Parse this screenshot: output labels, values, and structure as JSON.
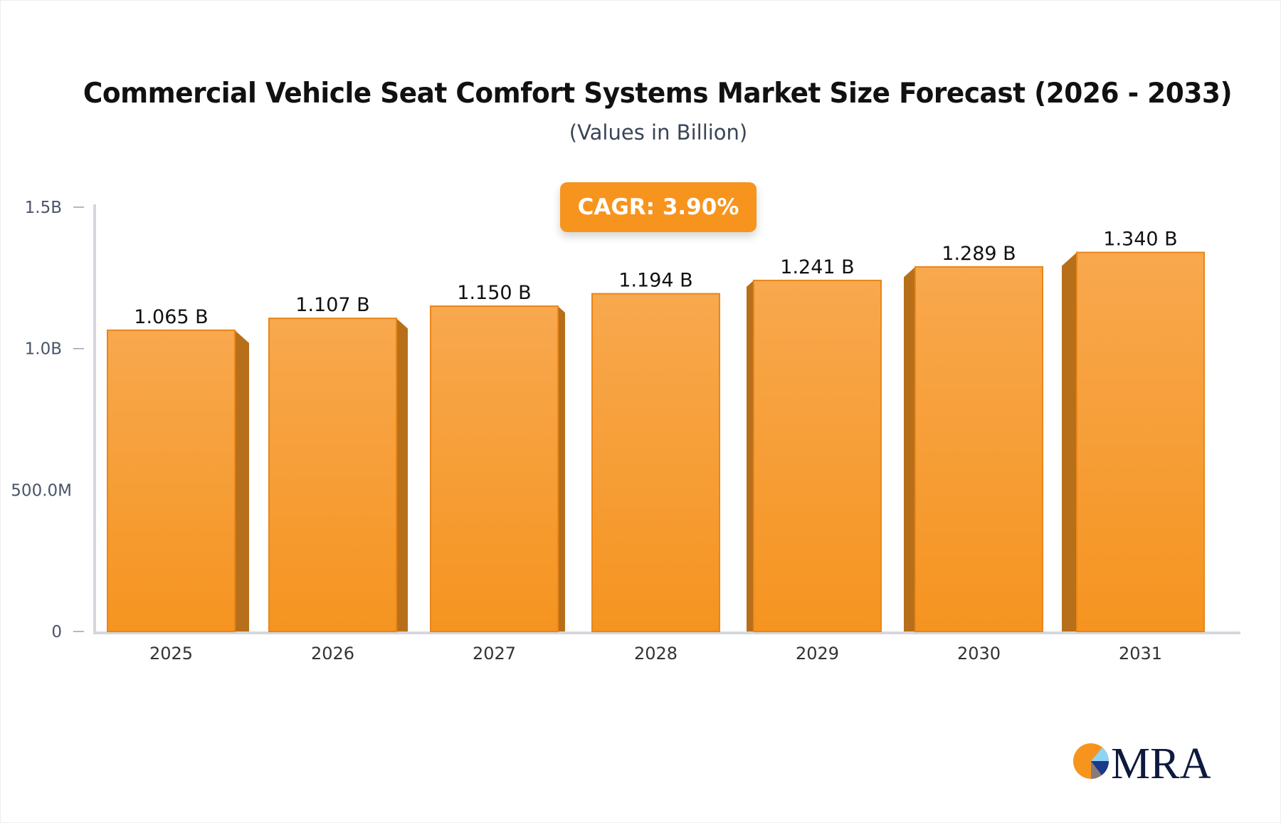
{
  "chart_data": {
    "type": "bar",
    "title": "Commercial Vehicle Seat Comfort Systems Market Size Forecast (2026 - 2033)",
    "subtitle": "(Values in Billion)",
    "annotation": "CAGR: 3.90%",
    "categories": [
      "2025",
      "2026",
      "2027",
      "2028",
      "2029",
      "2030",
      "2031"
    ],
    "values": [
      1.065,
      1.107,
      1.15,
      1.194,
      1.241,
      1.289,
      1.34
    ],
    "data_labels": [
      "1.065 B",
      "1.107 B",
      "1.150 B",
      "1.194 B",
      "1.241 B",
      "1.289 B",
      "1.340 B"
    ],
    "ylim": [
      0,
      1.5
    ],
    "yticks": [
      0,
      0.5,
      1.0,
      1.5
    ],
    "ytick_labels": [
      "0",
      "500.0M",
      "1.0B",
      "1.5B"
    ],
    "xlabel": "",
    "ylabel": "",
    "grid": false,
    "bar_color": "#f7941d",
    "bar_side_color": "#b86f19"
  },
  "logo": {
    "text": "MRA"
  }
}
